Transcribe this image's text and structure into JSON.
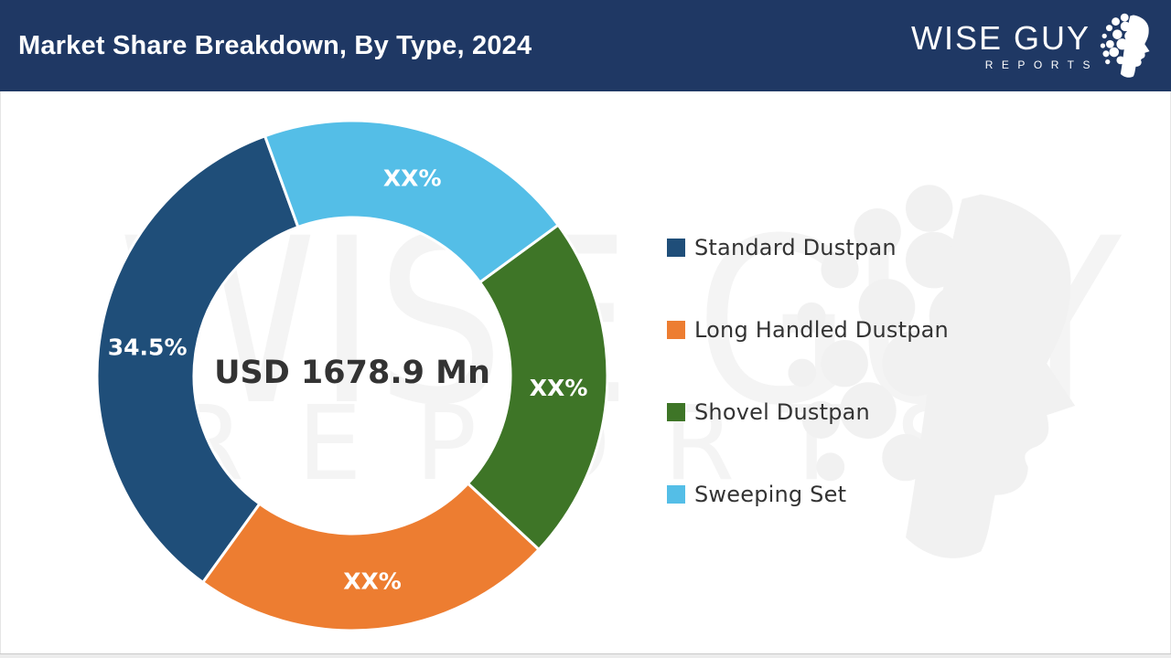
{
  "header": {
    "title": "Market Share Breakdown, By Type, 2024",
    "bg_color": "#1f3864",
    "logo": {
      "name": "WISE GUY",
      "subtitle": "REPORTS"
    }
  },
  "watermark": {
    "line1": "WISE GUY",
    "line2": "REPORTS"
  },
  "chart_data": {
    "type": "pie",
    "subtype": "donut",
    "title": "Market Share Breakdown, By Type, 2024",
    "center_label": "USD 1678.9 Mn",
    "total_value": "USD 1678.9 Mn",
    "start_angle_deg": 110,
    "direction": "counterclockwise",
    "inner_radius_ratio": 0.62,
    "legend_position": "right",
    "segments": [
      {
        "label": "Standard Dustpan",
        "value_pct": 34.5,
        "slice_label": "34.5%",
        "color": "#1f4e79"
      },
      {
        "label": "Long Handled Dustpan",
        "value_pct": 23.0,
        "slice_label": "XX%",
        "color": "#ed7d31"
      },
      {
        "label": "Shovel Dustpan",
        "value_pct": 22.0,
        "slice_label": "XX%",
        "color": "#3e7527"
      },
      {
        "label": "Sweeping Set",
        "value_pct": 20.5,
        "slice_label": "XX%",
        "color": "#54bee7"
      }
    ]
  }
}
